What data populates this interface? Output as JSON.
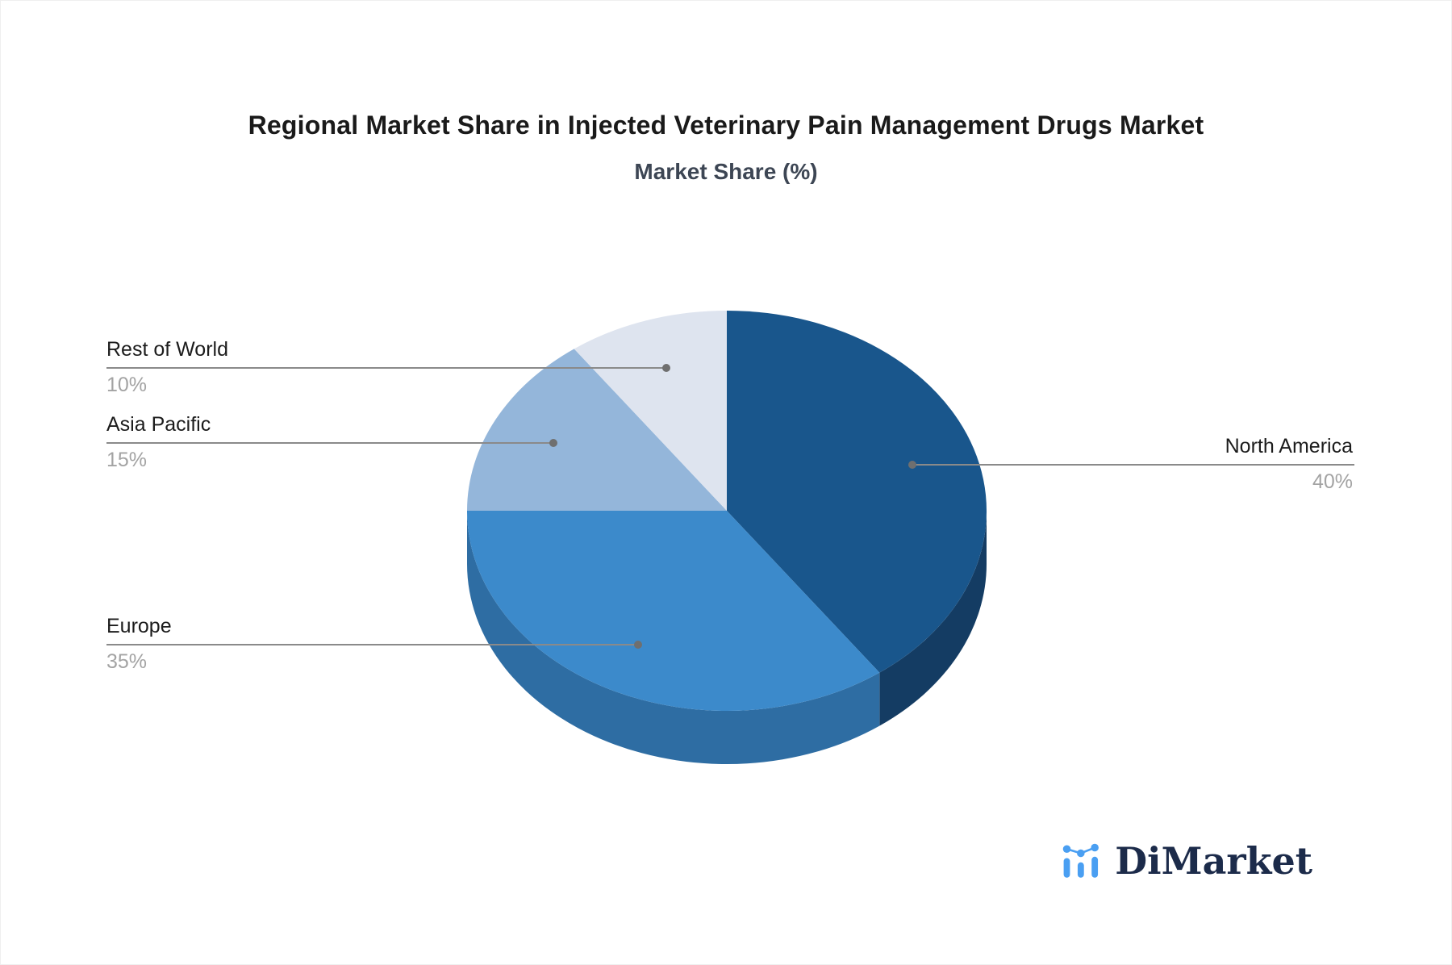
{
  "title": "Regional Market Share in Injected Veterinary Pain Management Drugs Market",
  "subtitle": "Market Share (%)",
  "logo": {
    "name": "DiMarket",
    "icon": "bar-line-chart-icon",
    "icon_color": "#4a9ff2",
    "text_color": "#1c2b4a"
  },
  "chart_data": {
    "type": "pie",
    "style": "3d",
    "title": "Regional Market Share in Injected Veterinary Pain Management Drugs Market",
    "subtitle": "Market Share (%)",
    "unit": "%",
    "start_angle": "top",
    "direction": "clockwise",
    "legend_position": "callout-labels",
    "slices": [
      {
        "label": "North America",
        "value": 40,
        "display": "40%",
        "color": "#19568c",
        "side_color": "#143c63",
        "label_side": "right"
      },
      {
        "label": "Europe",
        "value": 35,
        "display": "35%",
        "color": "#3c8acb",
        "side_color": "#2e6da3",
        "label_side": "left"
      },
      {
        "label": "Asia Pacific",
        "value": 15,
        "display": "15%",
        "color": "#94b6da",
        "side_color": "#7ea3c9",
        "label_side": "left"
      },
      {
        "label": "Rest of World",
        "value": 10,
        "display": "10%",
        "color": "#dee4ef",
        "side_color": "#c3cddd",
        "label_side": "left"
      }
    ],
    "leader_line_color": "#8a8a8a",
    "leader_dot_color": "#6f6f6f",
    "label_text_color": "#1c1c1c",
    "value_text_color": "#a3a3a3"
  }
}
